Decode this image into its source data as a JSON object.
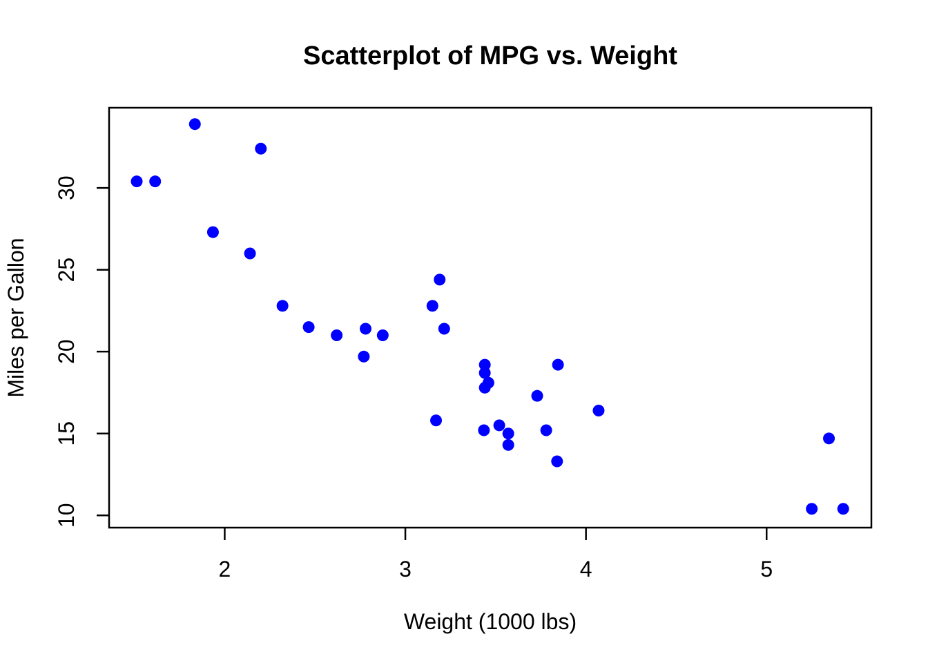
{
  "chart_data": {
    "type": "scatter",
    "title": "Scatterplot of MPG vs. Weight",
    "xlabel": "Weight (1000 lbs)",
    "ylabel": "Miles per Gallon",
    "xlim": [
      1.36,
      5.58
    ],
    "ylim": [
      9.25,
      34.9
    ],
    "x_ticks": [
      2,
      3,
      4,
      5
    ],
    "y_ticks": [
      10,
      15,
      20,
      25,
      30
    ],
    "grid": false,
    "legend": "none",
    "point_color": "#0000FF",
    "axis_color": "#000000",
    "background_color": "#FFFFFF",
    "points": [
      [
        2.62,
        21.0
      ],
      [
        2.875,
        21.0
      ],
      [
        2.32,
        22.8
      ],
      [
        3.215,
        21.4
      ],
      [
        3.44,
        18.7
      ],
      [
        3.46,
        18.1
      ],
      [
        3.57,
        14.3
      ],
      [
        3.19,
        24.4
      ],
      [
        3.15,
        22.8
      ],
      [
        3.44,
        19.2
      ],
      [
        3.44,
        17.8
      ],
      [
        4.07,
        16.4
      ],
      [
        3.73,
        17.3
      ],
      [
        3.78,
        15.2
      ],
      [
        5.25,
        10.4
      ],
      [
        5.424,
        10.4
      ],
      [
        5.345,
        14.7
      ],
      [
        2.2,
        32.4
      ],
      [
        1.615,
        30.4
      ],
      [
        1.835,
        33.9
      ],
      [
        2.465,
        21.5
      ],
      [
        3.52,
        15.5
      ],
      [
        3.435,
        15.2
      ],
      [
        3.84,
        13.3
      ],
      [
        3.845,
        19.2
      ],
      [
        1.935,
        27.3
      ],
      [
        2.14,
        26.0
      ],
      [
        1.513,
        30.4
      ],
      [
        3.17,
        15.8
      ],
      [
        2.77,
        19.7
      ],
      [
        3.57,
        15.0
      ],
      [
        2.78,
        21.4
      ]
    ]
  }
}
